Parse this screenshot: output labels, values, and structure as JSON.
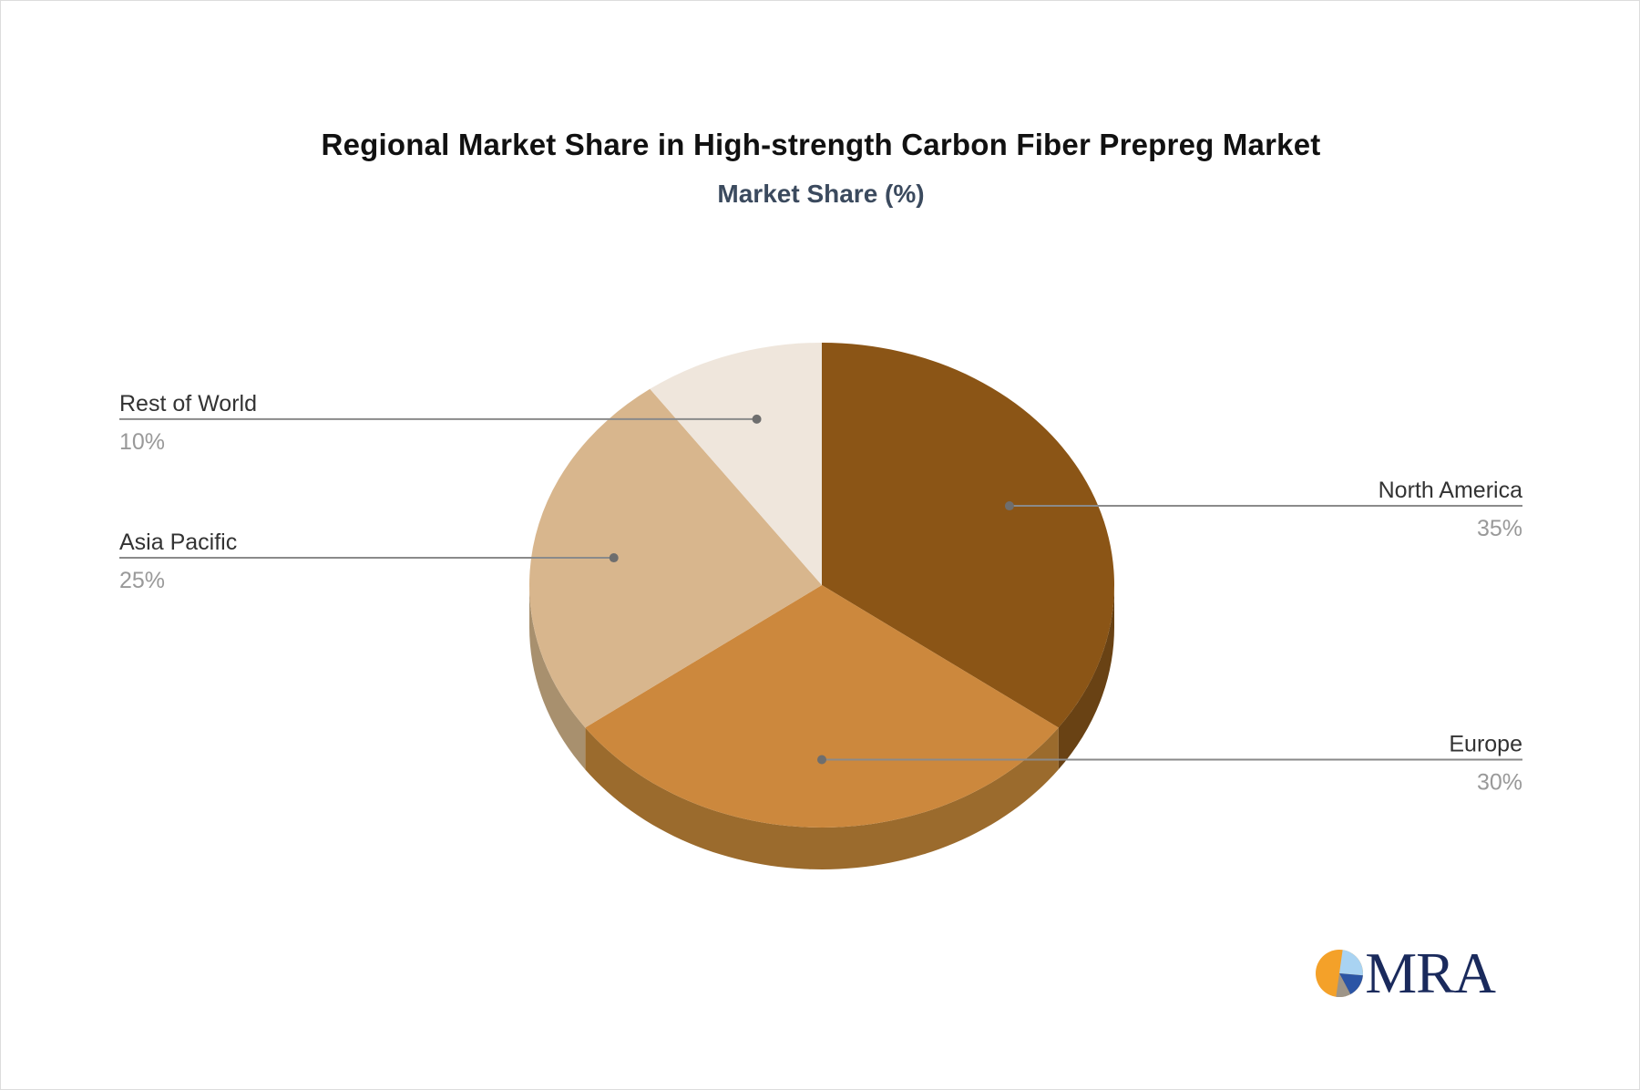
{
  "header": {
    "title": "Regional Market Share in High-strength Carbon Fiber Prepreg Market",
    "subtitle": "Market Share (%)"
  },
  "chart_data": {
    "type": "pie",
    "style": "3d",
    "title": "Regional Market Share in High-strength Carbon Fiber Prepreg Market",
    "subtitle": "Market Share (%)",
    "unit": "%",
    "start_angle_deg": 0,
    "direction": "clockwise",
    "legend": "none",
    "slices": [
      {
        "label": "North America",
        "value": 35,
        "display": "35%",
        "color": "#8B5516",
        "side_color": "#694214",
        "label_side": "right"
      },
      {
        "label": "Europe",
        "value": 30,
        "display": "30%",
        "color": "#CC883D",
        "side_color": "#9B6B2D",
        "label_side": "right"
      },
      {
        "label": "Asia Pacific",
        "value": 25,
        "display": "25%",
        "color": "#D8B68D",
        "side_color": "#A8906E",
        "label_side": "left"
      },
      {
        "label": "Rest of World",
        "value": 10,
        "display": "10%",
        "color": "#EFE6DC",
        "side_color": "#C9BFB2",
        "label_side": "left"
      }
    ],
    "label_text_color": "#333333",
    "value_text_color": "#999999",
    "leader_line_color": "#8A8A8A",
    "leader_dot_color": "#6E6E6E"
  },
  "logo": {
    "text": "MRA",
    "text_color": "#1A2A5C",
    "icon": {
      "orange": "#F4A129",
      "light_blue": "#A9D3F2",
      "dark_blue": "#2B55A5",
      "gray": "#9E9588"
    }
  }
}
